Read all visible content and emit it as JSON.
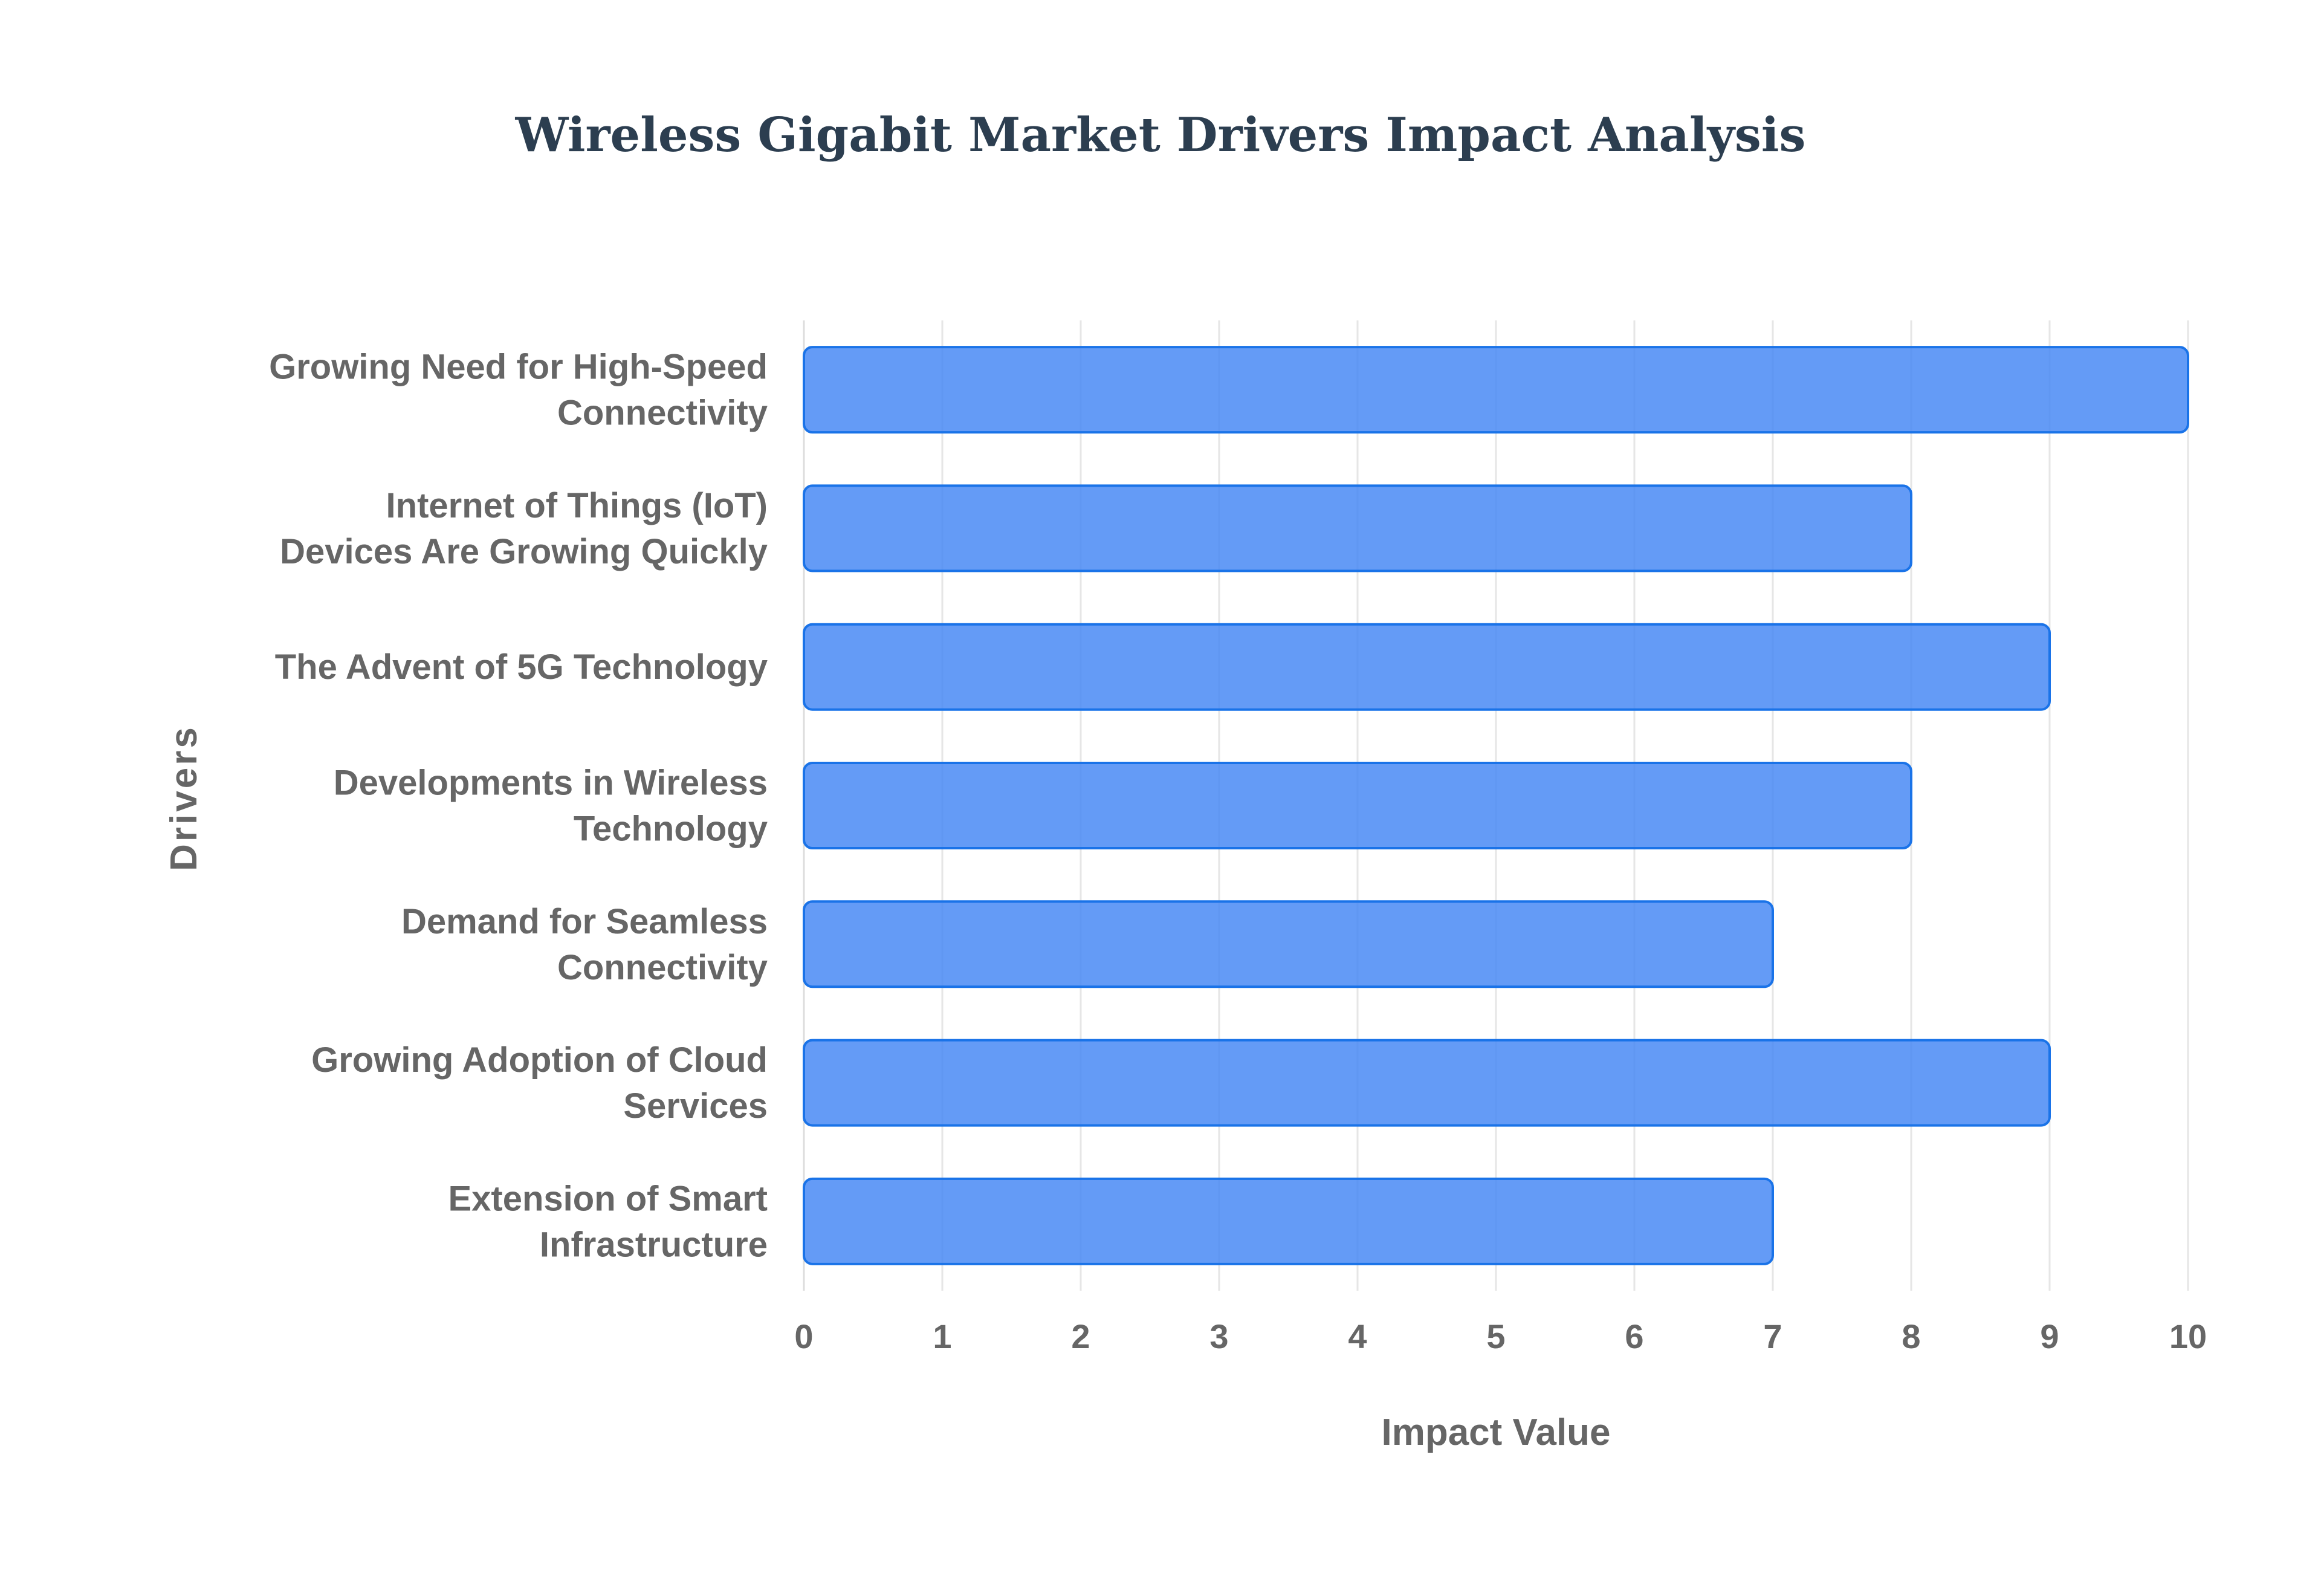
{
  "chart_data": {
    "type": "bar",
    "orientation": "horizontal",
    "title": "Wireless Gigabit Market Drivers Impact Analysis",
    "xlabel": "Impact Value",
    "ylabel": "Drivers",
    "xlim": [
      0,
      10
    ],
    "x_ticks": [
      "0",
      "1",
      "2",
      "3",
      "4",
      "5",
      "6",
      "7",
      "8",
      "9",
      "10"
    ],
    "grid": true,
    "categories": [
      [
        "Growing Need for High-Speed",
        "Connectivity"
      ],
      [
        "Internet of Things (IoT)",
        "Devices Are Growing Quickly"
      ],
      [
        "The Advent of 5G Technology"
      ],
      [
        "Developments in Wireless",
        "Technology"
      ],
      [
        "Demand for Seamless",
        "Connectivity"
      ],
      [
        "Growing Adoption of Cloud",
        "Services"
      ],
      [
        "Extension of Smart",
        "Infrastructure"
      ]
    ],
    "values": [
      10,
      8,
      9,
      8,
      7,
      9,
      7
    ],
    "colors": {
      "bar_fill": "#4285f4",
      "bar_stroke": "#1a73e8",
      "title": "#2c3e50",
      "label": "#666666"
    }
  }
}
